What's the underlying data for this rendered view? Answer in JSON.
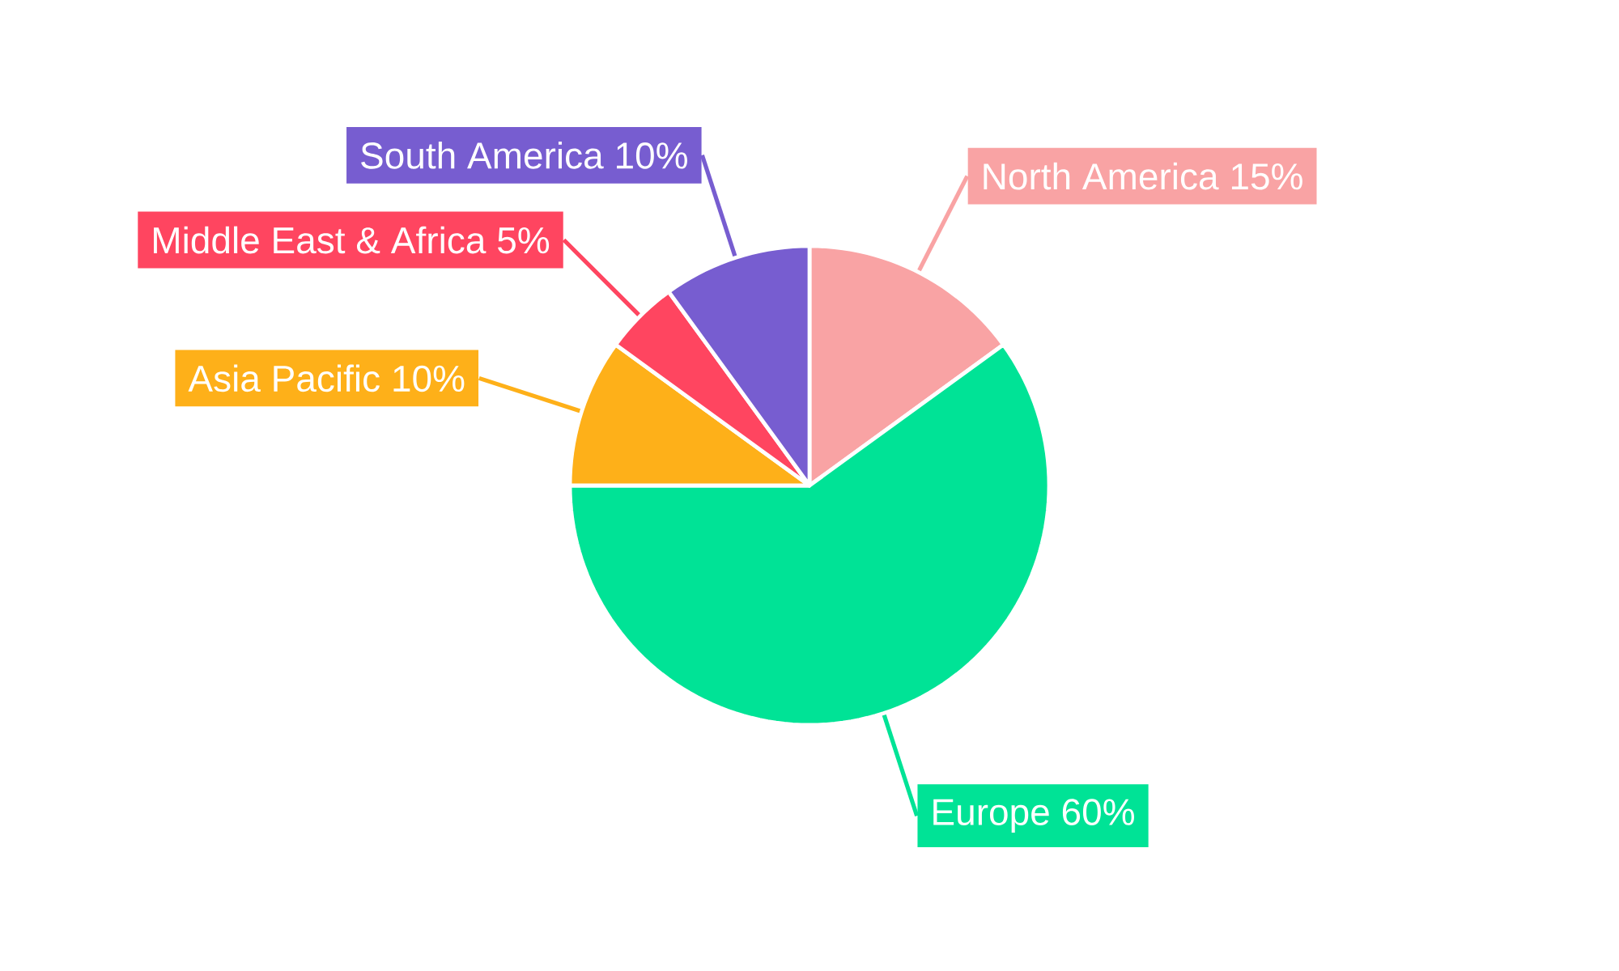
{
  "chart_data": {
    "type": "pie",
    "categories": [
      "North America",
      "Europe",
      "Asia Pacific",
      "Middle East & Africa",
      "South America"
    ],
    "values": [
      15,
      60,
      10,
      5,
      10
    ],
    "value_labels": [
      "15%",
      "60%",
      "10%",
      "5%",
      "10%"
    ],
    "colors": [
      "#f9a3a4",
      "#00e396",
      "#feb019",
      "#ff4560",
      "#775dd0"
    ]
  }
}
